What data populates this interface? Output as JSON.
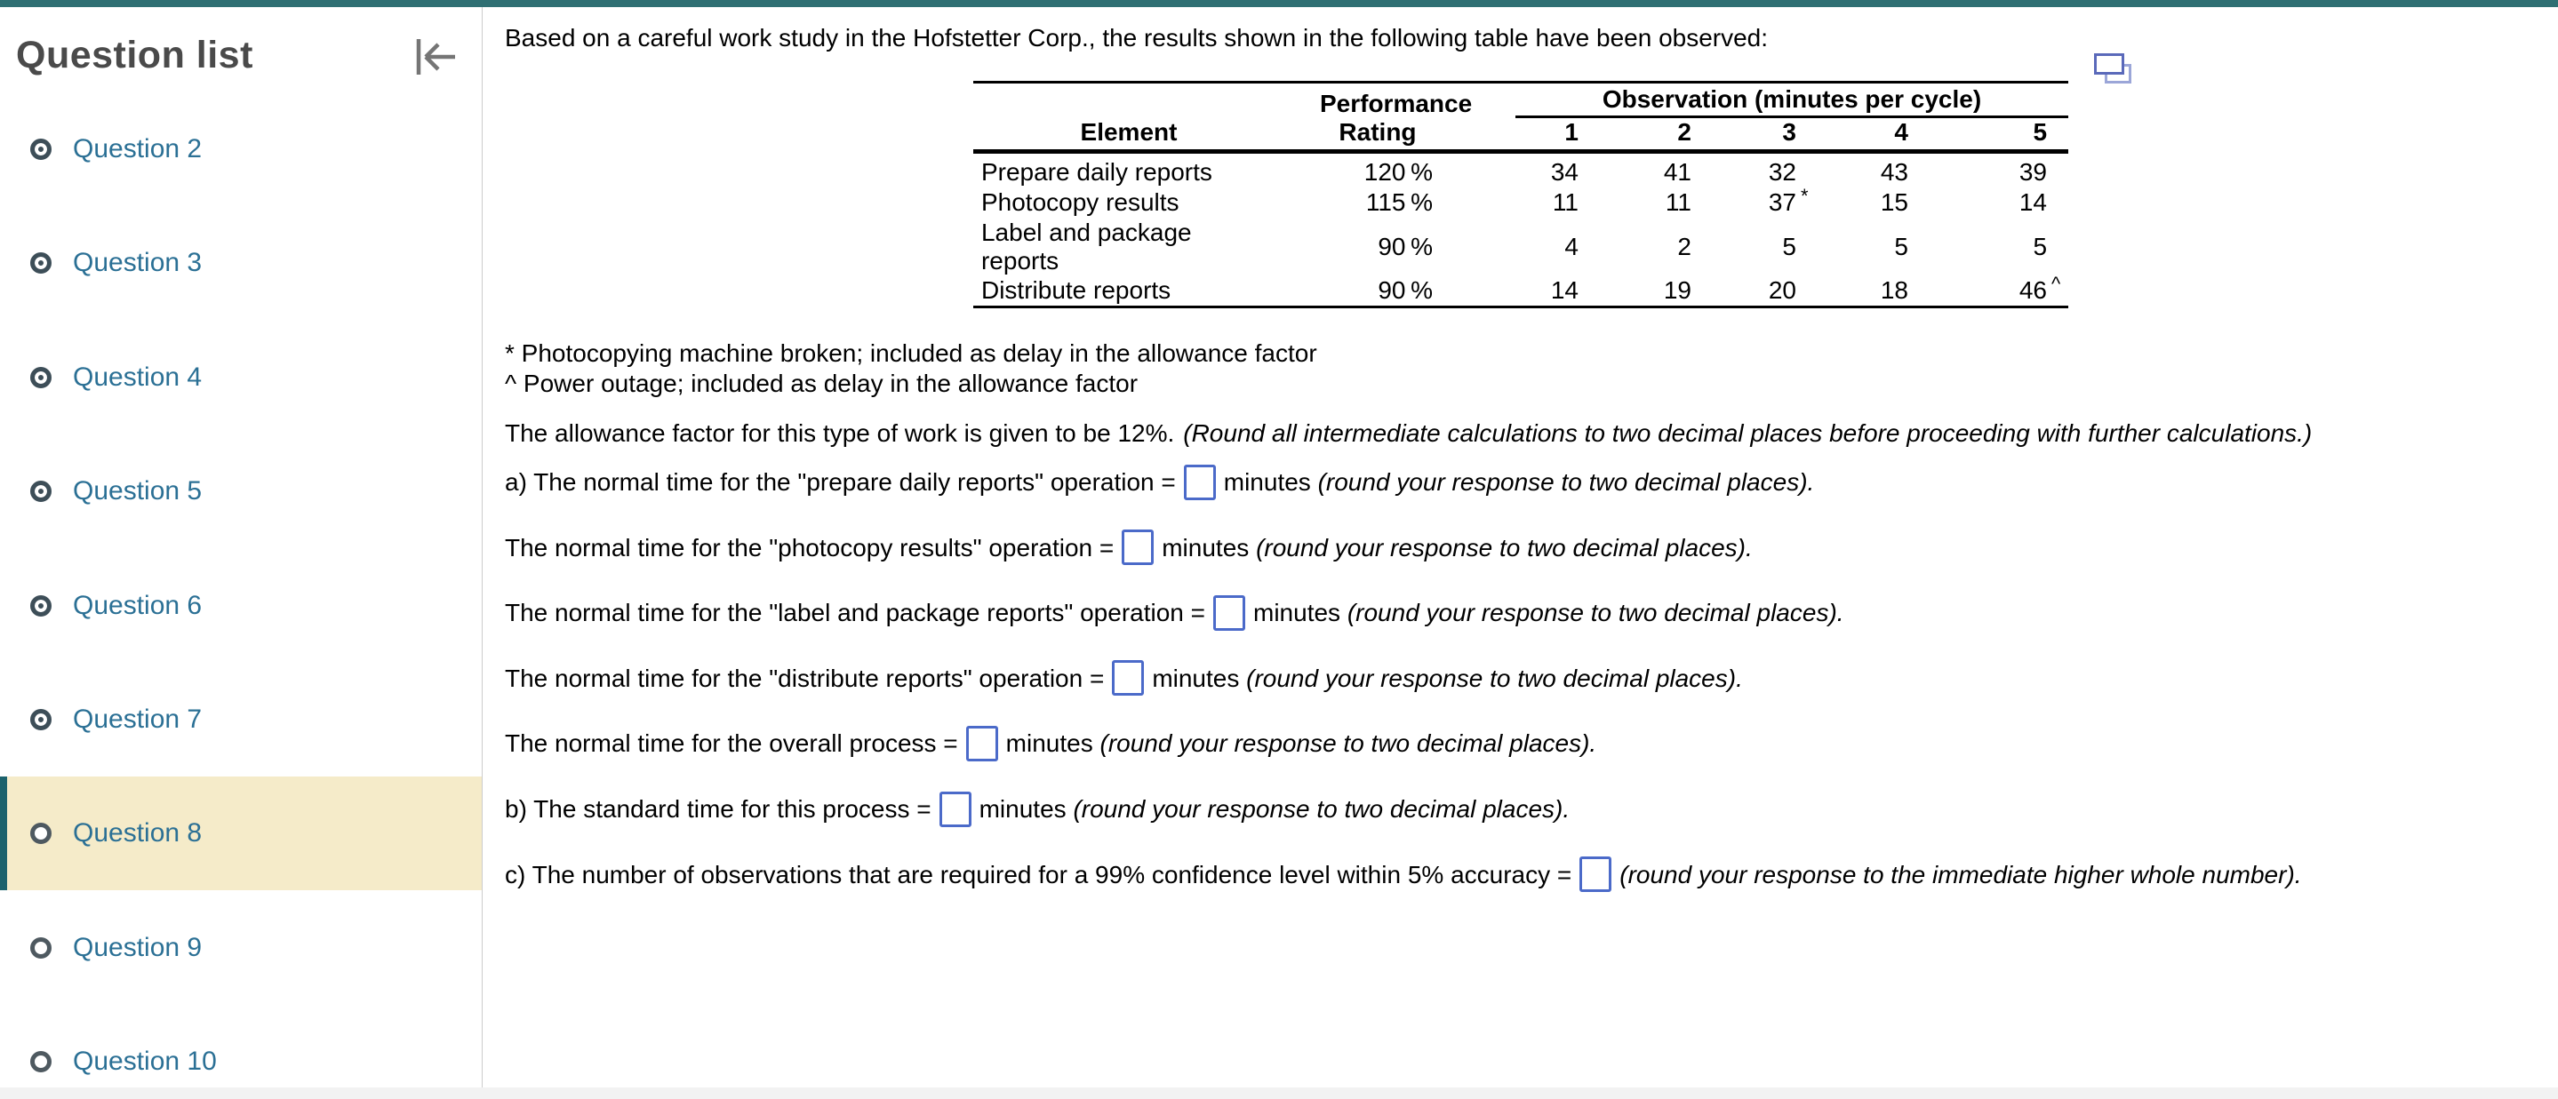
{
  "colors": {
    "top_bar": "#2f6f73",
    "selected_row_bg": "#f5ebc9",
    "selected_row_accent": "#1c626d",
    "question_link": "#2b7095",
    "input_border": "#4b6ac9",
    "copy_icon_front": "#5a69ba",
    "copy_icon_back": "#9ba6d8"
  },
  "sidebar": {
    "title": "Question list",
    "collapse_icon": "collapse-left-icon",
    "items": [
      {
        "label": "Question 2",
        "state": "answered",
        "selected": false
      },
      {
        "label": "Question 3",
        "state": "answered",
        "selected": false
      },
      {
        "label": "Question 4",
        "state": "answered",
        "selected": false
      },
      {
        "label": "Question 5",
        "state": "answered",
        "selected": false
      },
      {
        "label": "Question 6",
        "state": "answered",
        "selected": false
      },
      {
        "label": "Question 7",
        "state": "answered",
        "selected": false
      },
      {
        "label": "Question 8",
        "state": "unanswered",
        "selected": true
      },
      {
        "label": "Question 9",
        "state": "unanswered",
        "selected": false
      },
      {
        "label": "Question 10",
        "state": "unanswered",
        "selected": false
      }
    ]
  },
  "question": {
    "intro": "Based on a careful work study in the Hofstetter Corp., the results shown in the following table have been observed:",
    "table": {
      "group_headers": {
        "performance": "Performance",
        "observation": "Observation (minutes per cycle)"
      },
      "col_headers": [
        "Element",
        "Rating",
        "1",
        "2",
        "3",
        "4",
        "5"
      ],
      "rows": [
        {
          "element": "Prepare daily reports",
          "rating": "120 %",
          "obs": [
            "34",
            "41",
            "32",
            "43",
            "39"
          ]
        },
        {
          "element": "Photocopy results",
          "rating": "115 %",
          "obs": [
            "11",
            "11",
            "37*",
            "15",
            "14"
          ]
        },
        {
          "element": "Label and package reports",
          "rating": "90 %",
          "obs": [
            "4",
            "2",
            "5",
            "5",
            "5"
          ]
        },
        {
          "element": "Distribute reports",
          "rating": "90 %",
          "obs": [
            "14",
            "19",
            "20",
            "18",
            "46^"
          ]
        }
      ]
    },
    "footnotes": [
      "* Photocopying machine broken; included as delay in the allowance factor",
      "^ Power outage; included as delay in the allowance factor"
    ],
    "allowance_text": "The allowance factor for this type of work is given to be 12%.",
    "allowance_note": "(Round all intermediate calculations to two decimal places before proceeding with further calculations.)",
    "answer_lines": [
      {
        "prefix": "a) The normal time for the \"prepare daily reports\" operation =",
        "unit": "minutes",
        "note": "(round your response to two decimal places)."
      },
      {
        "prefix": "The normal time for the \"photocopy results\" operation =",
        "unit": "minutes",
        "note": "(round your response to two decimal places)."
      },
      {
        "prefix": "The normal time for the \"label and package reports\" operation =",
        "unit": "minutes",
        "note": "(round your response to two decimal places)."
      },
      {
        "prefix": "The normal time for the \"distribute reports\" operation =",
        "unit": "minutes",
        "note": "(round your response to two decimal places)."
      },
      {
        "prefix": "The normal time for the overall process =",
        "unit": "minutes",
        "note": "(round your response to two decimal places)."
      },
      {
        "prefix": "b) The standard time for this process =",
        "unit": "minutes",
        "note": "(round your response to two decimal places)."
      },
      {
        "prefix": "c) The number of observations that are required for a 99% confidence level within 5% accuracy =",
        "unit": "",
        "note": "(round your response to the immediate higher whole number)."
      }
    ],
    "input_value": ""
  }
}
